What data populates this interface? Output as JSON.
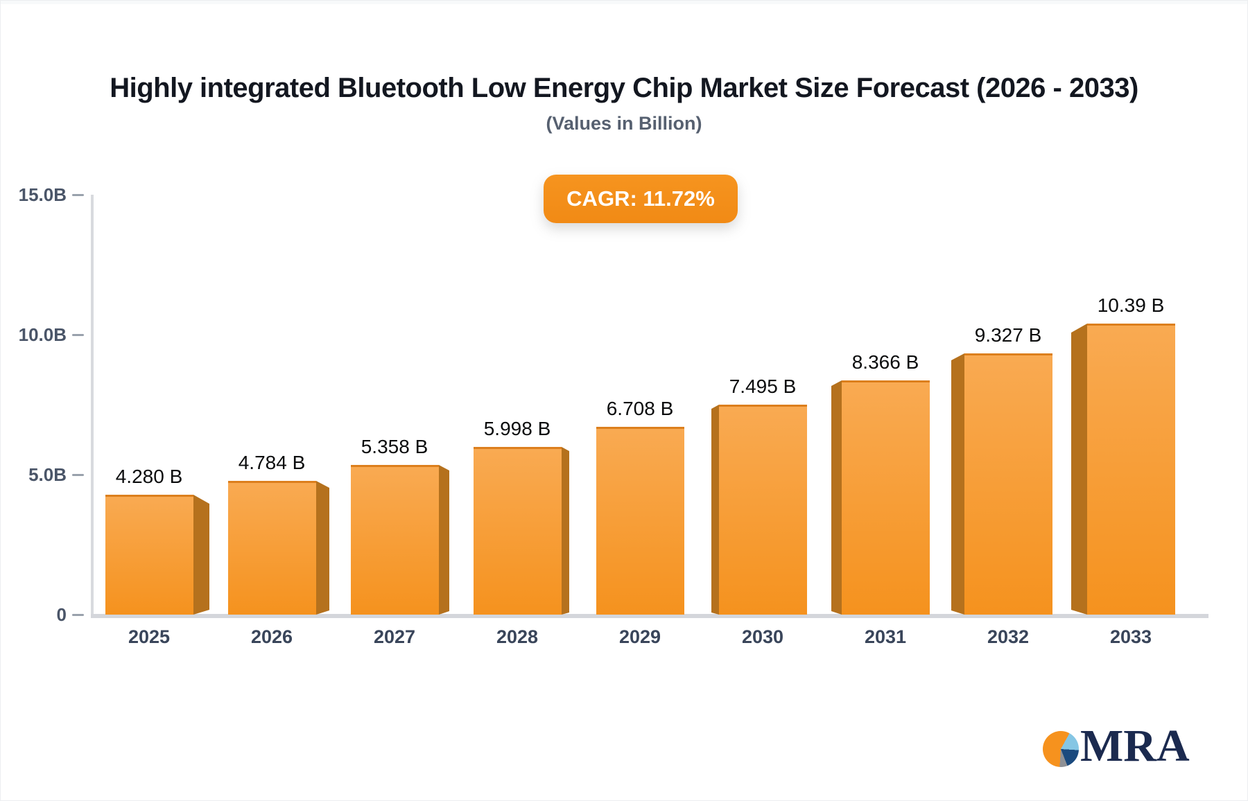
{
  "chart_data": {
    "type": "bar",
    "title": "Highly integrated Bluetooth Low Energy Chip Market Size Forecast (2026 - 2033)",
    "subtitle": "(Values in Billion)",
    "annotation_badge": "CAGR: 11.72%",
    "categories": [
      "2025",
      "2026",
      "2027",
      "2028",
      "2029",
      "2030",
      "2031",
      "2032",
      "2033"
    ],
    "values": [
      4.28,
      4.784,
      5.358,
      5.998,
      6.708,
      7.495,
      8.366,
      9.327,
      10.39
    ],
    "value_labels": [
      "4.280 B",
      "4.784 B",
      "5.358 B",
      "5.998 B",
      "6.708 B",
      "7.495 B",
      "8.366 B",
      "9.327 B",
      "10.39 B"
    ],
    "y_ticks": [
      {
        "label": "15.0B",
        "value": 15.0
      },
      {
        "label": "10.0B",
        "value": 10.0
      },
      {
        "label": "5.0B",
        "value": 5.0
      },
      {
        "label": "0",
        "value": 0
      }
    ],
    "ylim": [
      0,
      15
    ],
    "xlabel": "",
    "ylabel": "",
    "grid": false,
    "legend": null,
    "style": "3d-perspective-bars",
    "colors": {
      "bar_top": "#f9aa52",
      "bar_bottom": "#f5921e",
      "bar_side": "#b5711d",
      "bar_top_edge": "#dc7f1d",
      "badge_bg": "#f6941f",
      "badge_text": "#ffffff",
      "axis_line": "#d8dade",
      "baseline": "#d4d6db",
      "tick_text": "#4a5568",
      "category_text": "#39455a",
      "value_text": "#0b0c0d",
      "title_text": "#131720",
      "subtitle_text": "#566070"
    }
  },
  "logo": {
    "text": "MRA",
    "pie_colors": {
      "orange": "#f6921e",
      "light_blue": "#85c6e4",
      "navy": "#1b4a7e",
      "gray": "#8f9196"
    }
  }
}
